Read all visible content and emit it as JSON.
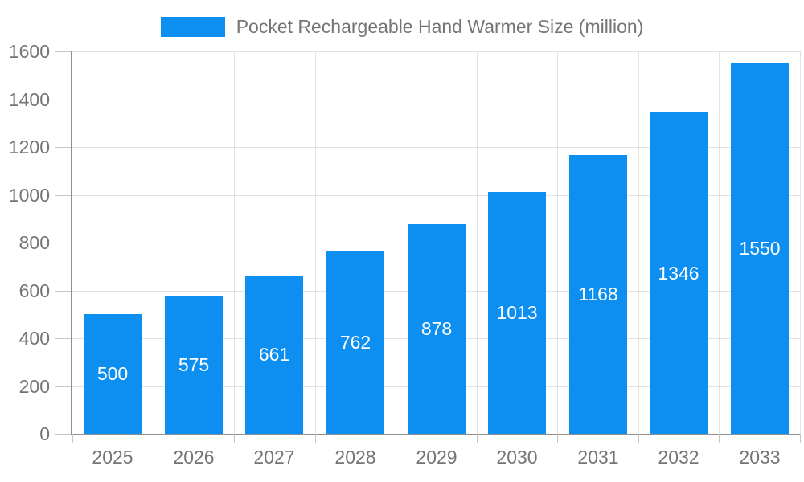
{
  "chart_data": {
    "type": "bar",
    "title": "Pocket Rechargeable Hand Warmer Size (million)",
    "legend_entries": [
      "Pocket Rechargeable Hand Warmer Size (million)"
    ],
    "legend_position": "top-center",
    "categories": [
      "2025",
      "2026",
      "2027",
      "2028",
      "2029",
      "2030",
      "2031",
      "2032",
      "2033"
    ],
    "values": [
      500,
      575,
      661,
      762,
      878,
      1013,
      1168,
      1346,
      1550
    ],
    "data_labels": [
      "500",
      "575",
      "661",
      "762",
      "878",
      "1013",
      "1168",
      "1346",
      "1550"
    ],
    "xlabel": "",
    "ylabel": "",
    "ylim": [
      0,
      1600
    ],
    "ytick_step": 200,
    "ytick_labels": [
      "0",
      "200",
      "400",
      "600",
      "800",
      "1000",
      "1200",
      "1400",
      "1600"
    ],
    "grid": true,
    "colors": {
      "bar": "#0d8ff2",
      "bar_label": "#ffffff",
      "axis_text": "#757575",
      "legend_text": "#757575",
      "gridline": "#e2e2e2",
      "axis_line": "#8f8f8f",
      "tick": "#c6c6c6",
      "background": "#ffffff"
    }
  }
}
